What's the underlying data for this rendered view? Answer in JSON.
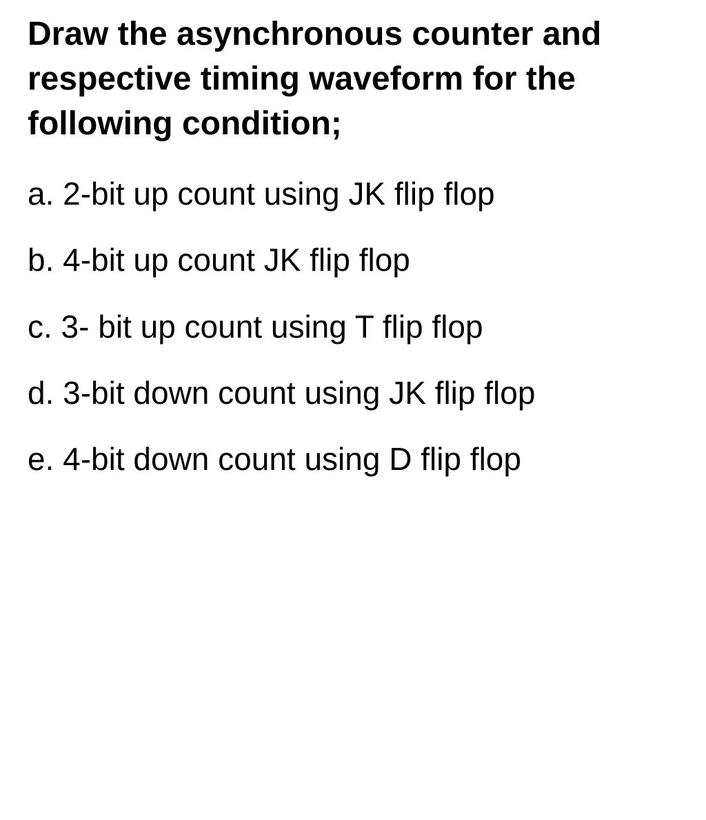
{
  "question": {
    "title": "Draw the asynchronous counter and respective timing waveform for the following condition;",
    "title_fontsize": 48,
    "title_fontweight": 700,
    "title_color": "#000000",
    "options": [
      "a. 2-bit up count using JK flip flop",
      "b. 4-bit up count JK flip flop",
      "c. 3- bit up count using T flip flop",
      "d. 3-bit down count using JK flip flop",
      "e. 4-bit down count using D flip flop"
    ],
    "option_fontsize": 46,
    "option_fontweight": 400,
    "option_color": "#000000",
    "background_color": "#ffffff",
    "font_family": "Arial, Helvetica, sans-serif"
  }
}
